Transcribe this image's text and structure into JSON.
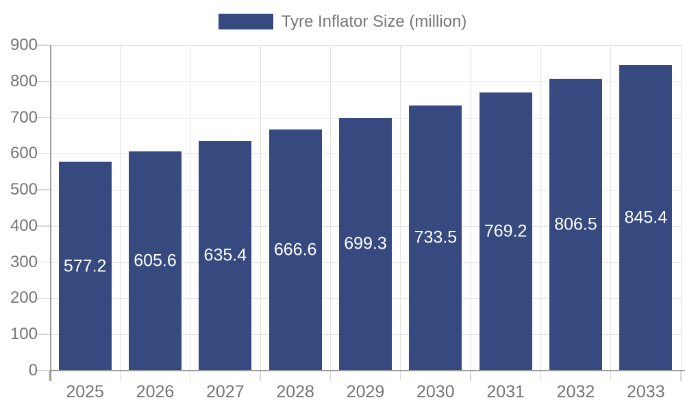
{
  "legend": {
    "label": "Tyre Inflator Size (million)"
  },
  "chart_data": {
    "type": "bar",
    "title": "Tyre Inflator Size (million)",
    "xlabel": "",
    "ylabel": "",
    "categories": [
      "2025",
      "2026",
      "2027",
      "2028",
      "2029",
      "2030",
      "2031",
      "2032",
      "2033"
    ],
    "series": [
      {
        "name": "Tyre Inflator Size (million)",
        "values": [
          577.2,
          605.6,
          635.4,
          666.6,
          699.3,
          733.5,
          769.2,
          806.5,
          845.4
        ]
      }
    ],
    "value_labels": [
      "577.2",
      "605.6",
      "635.4",
      "666.6",
      "699.3",
      "733.5",
      "769.2",
      "806.5",
      "845.4"
    ],
    "ylim": [
      0,
      900
    ],
    "ytick_step": 100,
    "ytick_labels": [
      "0",
      "100",
      "200",
      "300",
      "400",
      "500",
      "600",
      "700",
      "800",
      "900"
    ],
    "grid": true,
    "legend_position": "top-center",
    "colors": {
      "bar": "#364A80",
      "value_label": "#FFFFFF",
      "axis_text": "#757575",
      "gridline": "#E0E0E0",
      "axis_line": "#9A9A9A",
      "tick": "#D6D6D6"
    }
  }
}
